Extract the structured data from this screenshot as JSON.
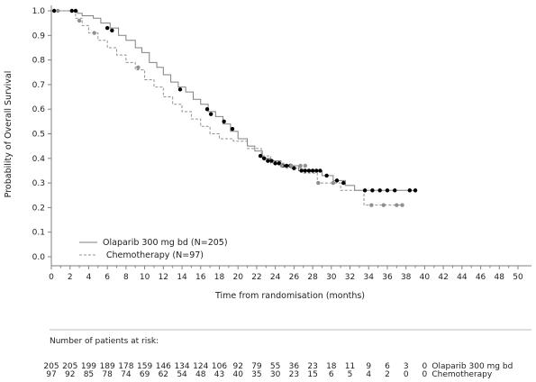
{
  "chart_data": {
    "type": "line",
    "subtype": "kaplan-meier",
    "title": "",
    "xlabel": "Time from randomisation (months)",
    "ylabel": "Probability of Overall Survival",
    "xlim": [
      0,
      50
    ],
    "ylim": [
      0,
      1
    ],
    "x_ticks": [
      "0",
      "2",
      "4",
      "6",
      "8",
      "10",
      "12",
      "14",
      "16",
      "18",
      "20",
      "22",
      "24",
      "26",
      "28",
      "30",
      "32",
      "34",
      "36",
      "38",
      "40",
      "42",
      "44",
      "46",
      "48",
      "50"
    ],
    "y_ticks": [
      "0.0",
      "0.1",
      "0.2",
      "0.3",
      "0.4",
      "0.5",
      "0.6",
      "0.7",
      "0.8",
      "0.9",
      "1.0"
    ],
    "grid": false,
    "legend_position": "bottom-left",
    "series": [
      {
        "name": "Olaparib 300 mg bd (N=205)",
        "color": "#808080",
        "line_style": "solid",
        "censor_color": "#000000",
        "steps": [
          [
            0,
            1.0
          ],
          [
            2.8,
            0.99
          ],
          [
            3.3,
            0.98
          ],
          [
            4.5,
            0.97
          ],
          [
            5.3,
            0.95
          ],
          [
            6.3,
            0.93
          ],
          [
            7.2,
            0.9
          ],
          [
            8.0,
            0.88
          ],
          [
            9.0,
            0.85
          ],
          [
            9.7,
            0.83
          ],
          [
            10.5,
            0.79
          ],
          [
            11.3,
            0.77
          ],
          [
            12.0,
            0.74
          ],
          [
            12.8,
            0.71
          ],
          [
            13.6,
            0.69
          ],
          [
            14.4,
            0.67
          ],
          [
            15.2,
            0.64
          ],
          [
            16.0,
            0.62
          ],
          [
            16.8,
            0.59
          ],
          [
            17.6,
            0.57
          ],
          [
            18.4,
            0.54
          ],
          [
            19.2,
            0.51
          ],
          [
            20.0,
            0.48
          ],
          [
            21.0,
            0.45
          ],
          [
            21.8,
            0.43
          ],
          [
            22.6,
            0.4
          ],
          [
            23.4,
            0.39
          ],
          [
            24.6,
            0.37
          ],
          [
            26.5,
            0.35
          ],
          [
            29.0,
            0.33
          ],
          [
            30.2,
            0.31
          ],
          [
            31.5,
            0.29
          ],
          [
            32.5,
            0.27
          ],
          [
            39.0,
            0.27
          ]
        ],
        "censored": [
          [
            0.3,
            1.0
          ],
          [
            2.2,
            1.0
          ],
          [
            2.6,
            1.0
          ],
          [
            6.0,
            0.93
          ],
          [
            6.5,
            0.92
          ],
          [
            13.8,
            0.68
          ],
          [
            16.7,
            0.6
          ],
          [
            17.1,
            0.58
          ],
          [
            18.5,
            0.55
          ],
          [
            19.4,
            0.52
          ],
          [
            22.4,
            0.41
          ],
          [
            22.8,
            0.4
          ],
          [
            23.2,
            0.39
          ],
          [
            23.6,
            0.39
          ],
          [
            24.0,
            0.38
          ],
          [
            24.4,
            0.38
          ],
          [
            24.8,
            0.37
          ],
          [
            25.2,
            0.37
          ],
          [
            25.6,
            0.37
          ],
          [
            26.0,
            0.36
          ],
          [
            26.8,
            0.35
          ],
          [
            27.2,
            0.35
          ],
          [
            27.6,
            0.35
          ],
          [
            28.0,
            0.35
          ],
          [
            28.4,
            0.35
          ],
          [
            28.8,
            0.35
          ],
          [
            29.5,
            0.33
          ],
          [
            30.6,
            0.31
          ],
          [
            31.3,
            0.3
          ],
          [
            33.6,
            0.27
          ],
          [
            34.4,
            0.27
          ],
          [
            35.2,
            0.27
          ],
          [
            36.0,
            0.27
          ],
          [
            36.8,
            0.27
          ],
          [
            38.4,
            0.27
          ],
          [
            39.0,
            0.27
          ]
        ]
      },
      {
        "name": "Chemotherapy (N=97)",
        "color": "#909090",
        "line_style": "dashed",
        "censor_color": "#909090",
        "steps": [
          [
            0,
            1.0
          ],
          [
            2.6,
            0.97
          ],
          [
            3.3,
            0.94
          ],
          [
            4.0,
            0.91
          ],
          [
            5.0,
            0.88
          ],
          [
            6.0,
            0.85
          ],
          [
            7.0,
            0.82
          ],
          [
            8.0,
            0.79
          ],
          [
            9.0,
            0.76
          ],
          [
            10.0,
            0.72
          ],
          [
            11.0,
            0.69
          ],
          [
            12.0,
            0.65
          ],
          [
            13.0,
            0.62
          ],
          [
            14.0,
            0.59
          ],
          [
            15.0,
            0.56
          ],
          [
            16.0,
            0.53
          ],
          [
            17.0,
            0.5
          ],
          [
            18.0,
            0.48
          ],
          [
            19.5,
            0.47
          ],
          [
            21.0,
            0.44
          ],
          [
            22.5,
            0.41
          ],
          [
            23.5,
            0.38
          ],
          [
            25.0,
            0.36
          ],
          [
            27.0,
            0.34
          ],
          [
            28.5,
            0.3
          ],
          [
            31.0,
            0.27
          ],
          [
            33.5,
            0.21
          ],
          [
            37.5,
            0.21
          ]
        ],
        "censored": [
          [
            0.7,
            1.0
          ],
          [
            3.0,
            0.96
          ],
          [
            4.6,
            0.91
          ],
          [
            9.3,
            0.77
          ],
          [
            24.7,
            0.37
          ],
          [
            25.7,
            0.37
          ],
          [
            26.7,
            0.37
          ],
          [
            27.2,
            0.37
          ],
          [
            28.6,
            0.3
          ],
          [
            30.2,
            0.3
          ],
          [
            34.3,
            0.21
          ],
          [
            35.6,
            0.21
          ],
          [
            37.0,
            0.21
          ],
          [
            37.6,
            0.21
          ]
        ]
      }
    ],
    "risk_table": {
      "title": "Number of patients at risk:",
      "times": [
        0,
        2,
        4,
        6,
        8,
        10,
        12,
        14,
        16,
        18,
        20,
        22,
        24,
        26,
        28,
        30,
        32,
        34,
        36,
        38,
        40
      ],
      "rows": [
        {
          "label": "Olaparib 300 mg bd",
          "values": [
            "205",
            "205",
            "199",
            "189",
            "178",
            "159",
            "146",
            "134",
            "124",
            "106",
            "92",
            "79",
            "55",
            "36",
            "23",
            "18",
            "11",
            "9",
            "6",
            "3",
            "0"
          ]
        },
        {
          "label": "Chemotherapy",
          "values": [
            "97",
            "92",
            "85",
            "78",
            "74",
            "69",
            "62",
            "54",
            "48",
            "43",
            "40",
            "35",
            "30",
            "23",
            "15",
            "6",
            "5",
            "4",
            "2",
            "0",
            "0"
          ]
        }
      ]
    }
  }
}
